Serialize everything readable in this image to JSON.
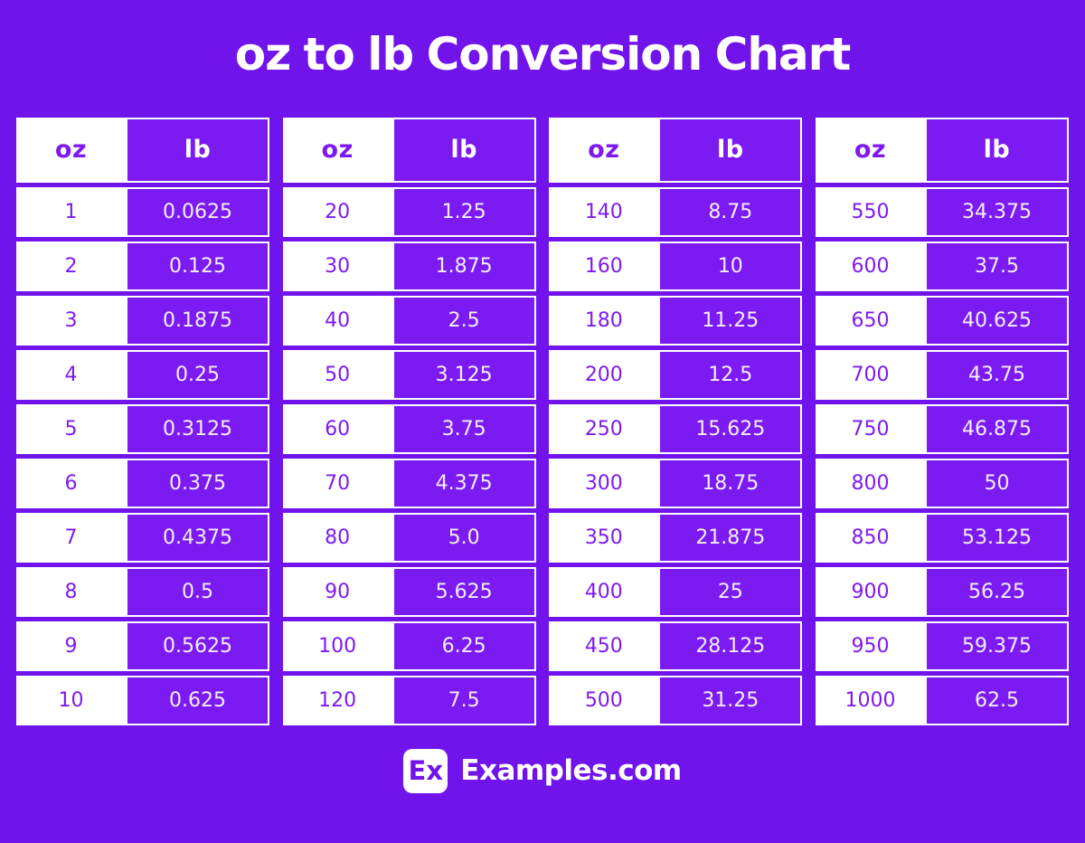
{
  "title": "oz to lb Conversion Chart",
  "footer": {
    "logo_text": "Ex",
    "brand": "Examples.com"
  },
  "colors": {
    "background": "#7113EB",
    "cell_purple": "#7B1BF2",
    "oz_text": "#7D1AF0",
    "cell_text": "#F4EEFB",
    "white": "#FFFFFF"
  },
  "chart_data": {
    "type": "table",
    "title": "oz to lb Conversion Chart",
    "columns": [
      "oz",
      "lb"
    ],
    "groups": 4,
    "rows_per_group": 10,
    "rows": [
      [
        "1",
        "0.0625"
      ],
      [
        "2",
        "0.125"
      ],
      [
        "3",
        "0.1875"
      ],
      [
        "4",
        "0.25"
      ],
      [
        "5",
        "0.3125"
      ],
      [
        "6",
        "0.375"
      ],
      [
        "7",
        "0.4375"
      ],
      [
        "8",
        "0.5"
      ],
      [
        "9",
        "0.5625"
      ],
      [
        "10",
        "0.625"
      ],
      [
        "20",
        "1.25"
      ],
      [
        "30",
        "1.875"
      ],
      [
        "40",
        "2.5"
      ],
      [
        "50",
        "3.125"
      ],
      [
        "60",
        "3.75"
      ],
      [
        "70",
        "4.375"
      ],
      [
        "80",
        "5.0"
      ],
      [
        "90",
        "5.625"
      ],
      [
        "100",
        "6.25"
      ],
      [
        "120",
        "7.5"
      ],
      [
        "140",
        "8.75"
      ],
      [
        "160",
        "10"
      ],
      [
        "180",
        "11.25"
      ],
      [
        "200",
        "12.5"
      ],
      [
        "250",
        "15.625"
      ],
      [
        "300",
        "18.75"
      ],
      [
        "350",
        "21.875"
      ],
      [
        "400",
        "25"
      ],
      [
        "450",
        "28.125"
      ],
      [
        "500",
        "31.25"
      ],
      [
        "550",
        "34.375"
      ],
      [
        "600",
        "37.5"
      ],
      [
        "650",
        "40.625"
      ],
      [
        "700",
        "43.75"
      ],
      [
        "750",
        "46.875"
      ],
      [
        "800",
        "50"
      ],
      [
        "850",
        "53.125"
      ],
      [
        "900",
        "56.25"
      ],
      [
        "950",
        "59.375"
      ],
      [
        "1000",
        "62.5"
      ]
    ]
  }
}
